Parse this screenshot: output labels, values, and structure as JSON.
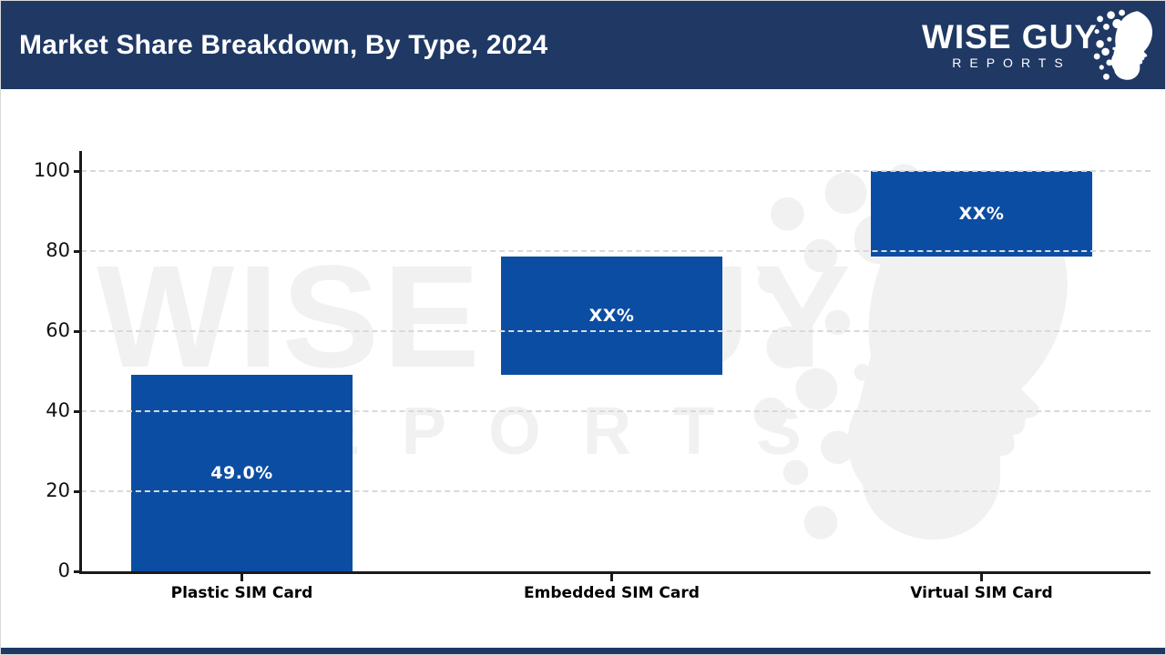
{
  "header": {
    "title": "Market Share Breakdown, By Type, 2024",
    "logo": {
      "line1": "WISE GUY",
      "line2": "REPORTS"
    }
  },
  "watermark": {
    "line1": "WISE GUY",
    "line2": "REPORTS"
  },
  "colors": {
    "header_bg": "#1f3864",
    "bar_blue": "#0b4da2",
    "gridline": "#d9d9d9",
    "watermark": "#f1f1f1",
    "axis": "#1a1a1a"
  },
  "chart_data": {
    "type": "bar",
    "subtype": "waterfall",
    "title": "Market Share Breakdown, By Type, 2024",
    "xlabel": "",
    "ylabel": "",
    "categories": [
      "Plastic SIM Card",
      "Embedded SIM Card",
      "Virtual SIM Card"
    ],
    "segments": [
      {
        "category": "Plastic SIM Card",
        "start": 0,
        "end": 49,
        "label": "49.0%"
      },
      {
        "category": "Embedded SIM Card",
        "start": 49,
        "end": 78.5,
        "label": "XX%"
      },
      {
        "category": "Virtual SIM Card",
        "start": 78.5,
        "end": 100,
        "label": "XX%"
      }
    ],
    "yticks": [
      0,
      20,
      40,
      60,
      80,
      100
    ],
    "ylim": [
      0,
      105
    ],
    "grid": "horizontal-dashed",
    "legend": "none",
    "bar_color": "#0b4da2",
    "value_label_color": "#ffffff"
  }
}
